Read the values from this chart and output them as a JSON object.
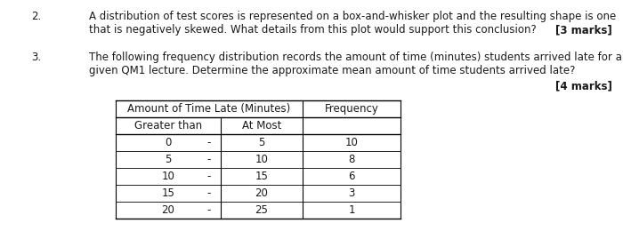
{
  "q2_number": "2.",
  "q2_text_line1": "A distribution of test scores is represented on a box-and-whisker plot and the resulting shape is one",
  "q2_text_line2": "that is negatively skewed. What details from this plot would support this conclusion?",
  "q2_marks": "[3 marks]",
  "q3_number": "3.",
  "q3_text_line1": "The following frequency distribution records the amount of time (minutes) students arrived late for a",
  "q3_text_line2": "given QM1 lecture. Determine the approximate mean amount of time students arrived late?",
  "q3_marks": "[4 marks]",
  "table_header_col1a": "Amount of Time Late (Minutes)",
  "table_header_col1b_left": "Greater than",
  "table_header_col1b_mid": "At Most",
  "table_header_col2": "Frequency",
  "table_rows": [
    [
      "0",
      "-",
      "5",
      "10"
    ],
    [
      "5",
      "-",
      "10",
      "8"
    ],
    [
      "10",
      "-",
      "15",
      "6"
    ],
    [
      "15",
      "-",
      "20",
      "3"
    ],
    [
      "20",
      "-",
      "25",
      "1"
    ]
  ],
  "text_color": "#1a1a1a",
  "font_size_text": 8.5,
  "font_size_table": 8.5
}
